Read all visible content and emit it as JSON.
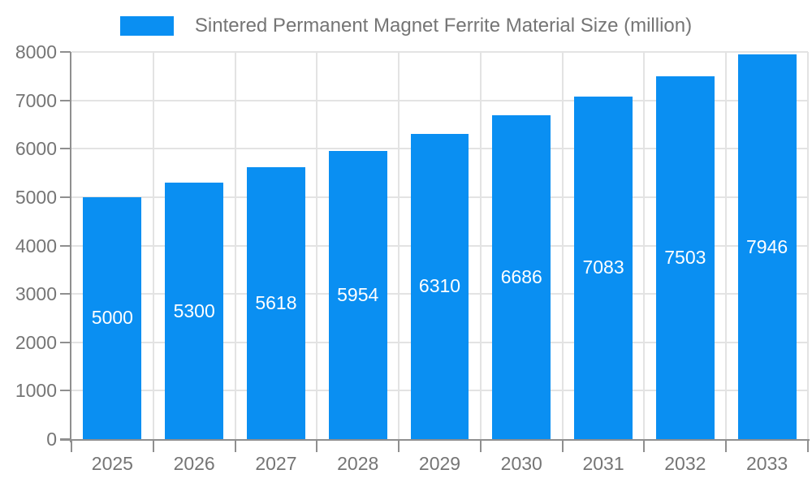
{
  "legend": {
    "label": "Sintered Permanent Magnet Ferrite Material Size (million)"
  },
  "colors": {
    "bar": "#0a8ff2",
    "bar_value_text": "#ffffff",
    "axis_line": "#8f8f8f",
    "gridline": "#e3e3e3",
    "tick_text": "#757575",
    "legend_text": "#757575",
    "background": "#ffffff"
  },
  "chart_data": {
    "type": "bar",
    "title": "Sintered Permanent Magnet Ferrite Material Size (million)",
    "categories": [
      "2025",
      "2026",
      "2027",
      "2028",
      "2029",
      "2030",
      "2031",
      "2032",
      "2033"
    ],
    "values": [
      5000,
      5300,
      5618,
      5954,
      6310,
      6686,
      7083,
      7503,
      7946
    ],
    "series_name": "Sintered Permanent Magnet Ferrite Material Size (million)",
    "xlabel": "",
    "ylabel": "",
    "ylim": [
      0,
      8000
    ],
    "yticks": [
      0,
      1000,
      2000,
      3000,
      4000,
      5000,
      6000,
      7000,
      8000
    ],
    "grid": true,
    "legend_position": "top",
    "bar_labels": "inside-center"
  }
}
